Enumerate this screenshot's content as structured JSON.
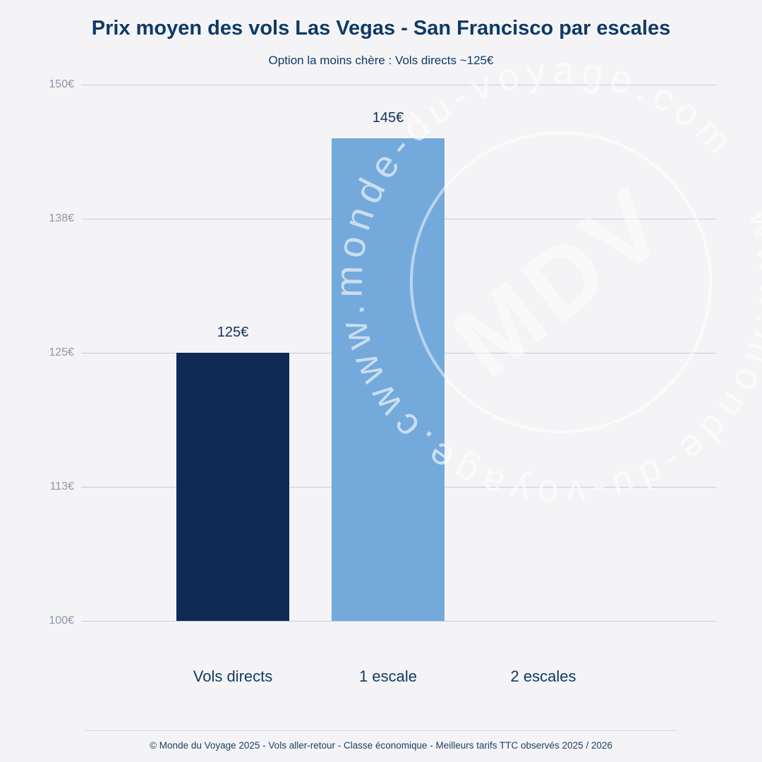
{
  "page": {
    "title": "Prix moyen des vols Las Vegas - San Francisco par escales",
    "subtitle": "Option la moins chère : Vols directs ~125€",
    "footer": "© Monde du Voyage 2025 - Vols aller-retour - Classe économique - Meilleurs tarifs TTC observés 2025 / 2026"
  },
  "watermark": {
    "text": "www.monde-du-voyage.com",
    "initials": "MDV"
  },
  "chart_data": {
    "type": "bar",
    "title": "Prix moyen des vols Las Vegas - San Francisco par escales",
    "subtitle": "Option la moins chère : Vols directs ~125€",
    "categories": [
      "Vols directs",
      "1 escale",
      "2 escales"
    ],
    "values": [
      125,
      145,
      null
    ],
    "value_labels": [
      "125€",
      "145€",
      ""
    ],
    "xlabel": "",
    "ylabel": "",
    "ylim": [
      100,
      150
    ],
    "yticks": [
      {
        "label": "150€",
        "value": 150
      },
      {
        "label": "138€",
        "value": 137.5
      },
      {
        "label": "125€",
        "value": 125
      },
      {
        "label": "113€",
        "value": 112.5
      },
      {
        "label": "100€",
        "value": 100
      }
    ],
    "grid": true,
    "legend": false,
    "bar_colors": [
      "#0f2a54",
      "#74a9db",
      "#74a9db"
    ]
  },
  "colors": {
    "background": "#f4f4f6",
    "title_text": "#0e3a66",
    "axis_tick_text": "#8e96a9",
    "gridline": "#c5ccdb",
    "bar_dark_navy": "#0f2a54",
    "bar_light_blue": "#74a9db",
    "footer_text": "#1d3f66",
    "watermark": "#ffffff"
  }
}
